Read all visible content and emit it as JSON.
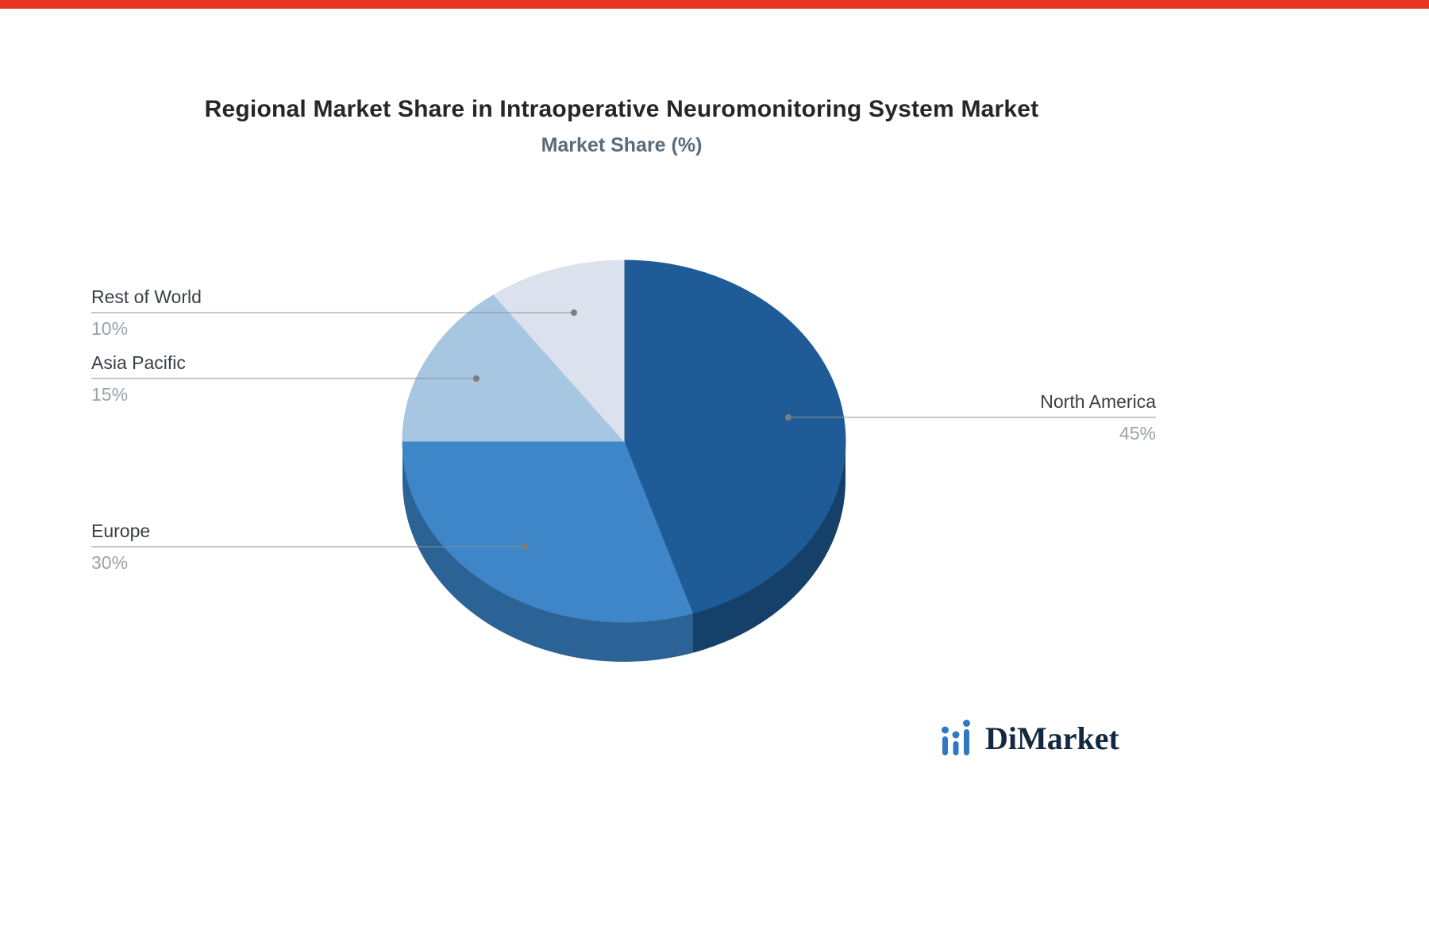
{
  "page": {
    "background": "#ffffff",
    "top_bar_color": "#e93223"
  },
  "chart_data": {
    "type": "pie",
    "title": "Regional Market Share in Intraoperative Neuromonitoring System Market",
    "subtitle": "Market Share (%)",
    "unit": "%",
    "style": "3d",
    "legend_position": "none",
    "start_angle_deg": 0,
    "direction": "clockwise",
    "labels": [
      "North America",
      "Europe",
      "Asia Pacific",
      "Rest of World"
    ],
    "values": [
      45,
      30,
      15,
      10
    ],
    "percent_labels": [
      "45%",
      "30%",
      "15%",
      "10%"
    ],
    "colors": [
      "#1f5c97",
      "#3e86c7",
      "#a7c6e2",
      "#dbe2ed"
    ],
    "side_colors": [
      "#15406a",
      "#2c6396",
      "#7ea2c6",
      "#b9c5d8"
    ]
  },
  "brand": {
    "name": "DiMarket",
    "logo_icon": "bar-chart-icon",
    "logo_color": "#2f78c3",
    "text_color": "#13293f"
  }
}
